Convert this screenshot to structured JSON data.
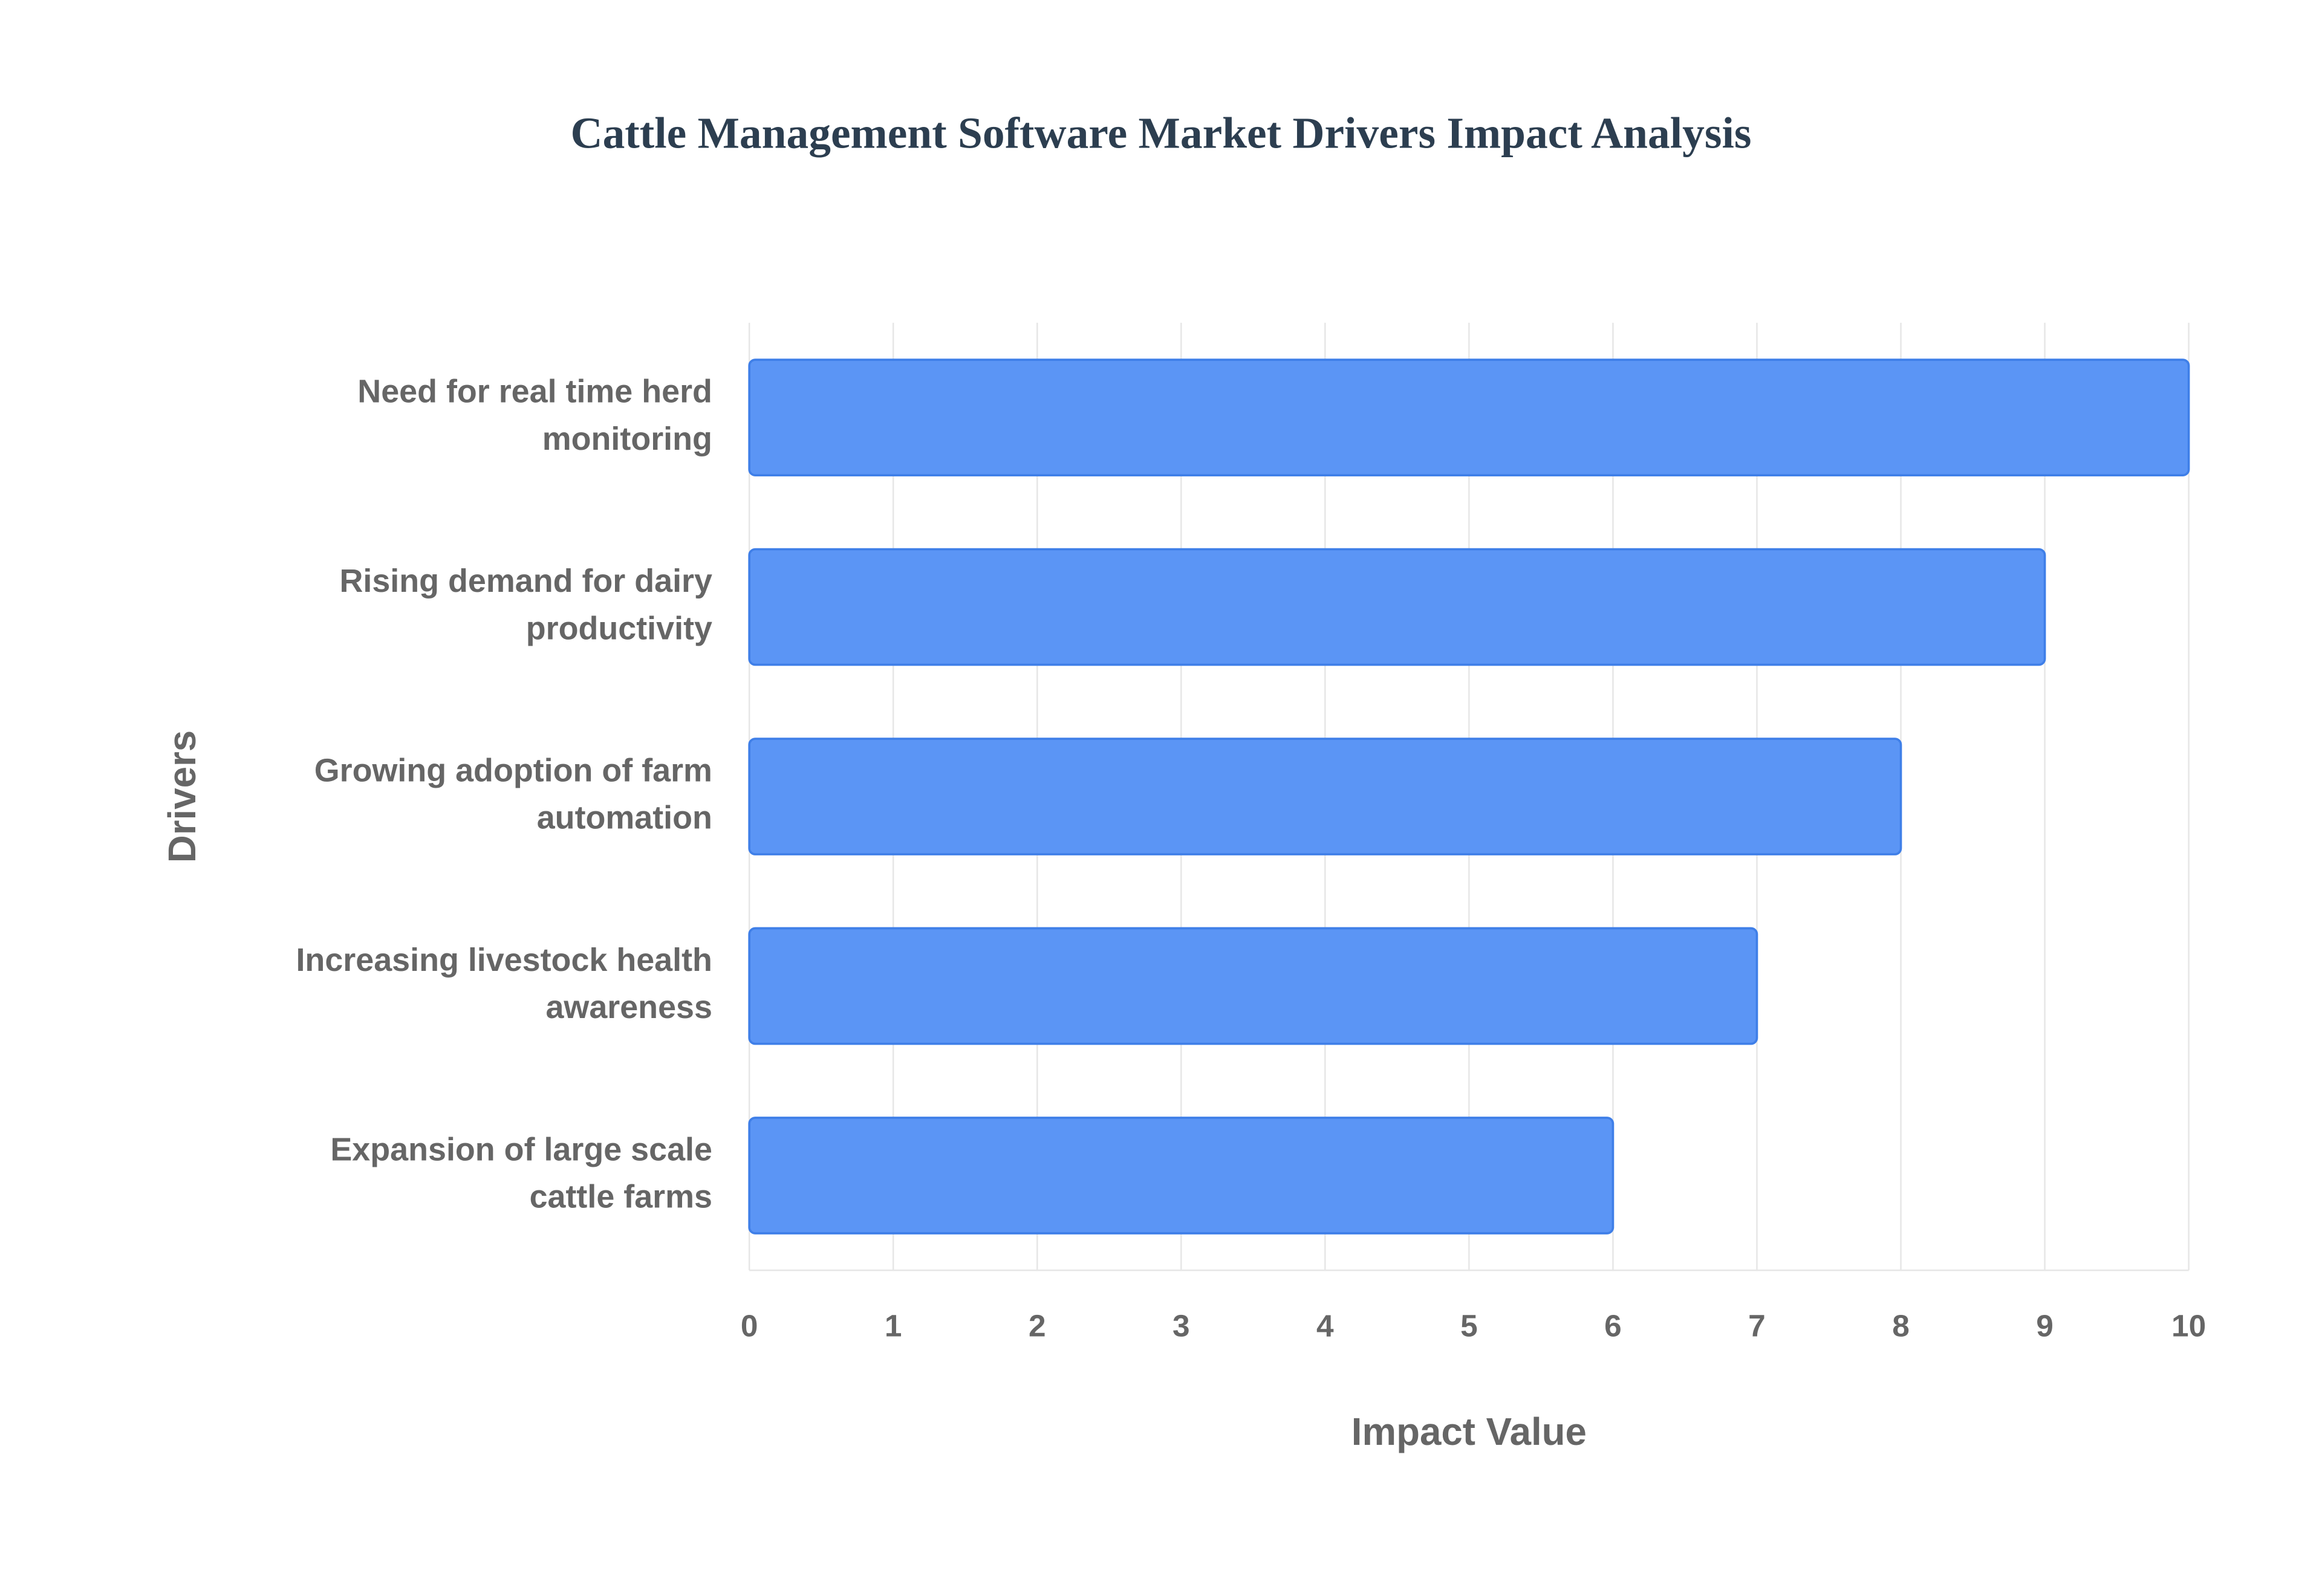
{
  "chart_data": {
    "type": "barh",
    "title": "Cattle Management Software Market Drivers Impact Analysis",
    "xlabel": "Impact Value",
    "ylabel": "Drivers",
    "categories": [
      "Need for real time herd monitoring",
      "Rising demand for dairy productivity",
      "Growing adoption of farm automation",
      "Increasing livestock health awareness",
      "Expansion of large scale cattle farms"
    ],
    "values": [
      10,
      9,
      8,
      7,
      6
    ],
    "color": "#5b95f5",
    "xlim": [
      0,
      10
    ],
    "xticks": [
      0,
      1,
      2,
      3,
      4,
      5,
      6,
      7,
      8,
      9,
      10
    ],
    "grid": true
  }
}
